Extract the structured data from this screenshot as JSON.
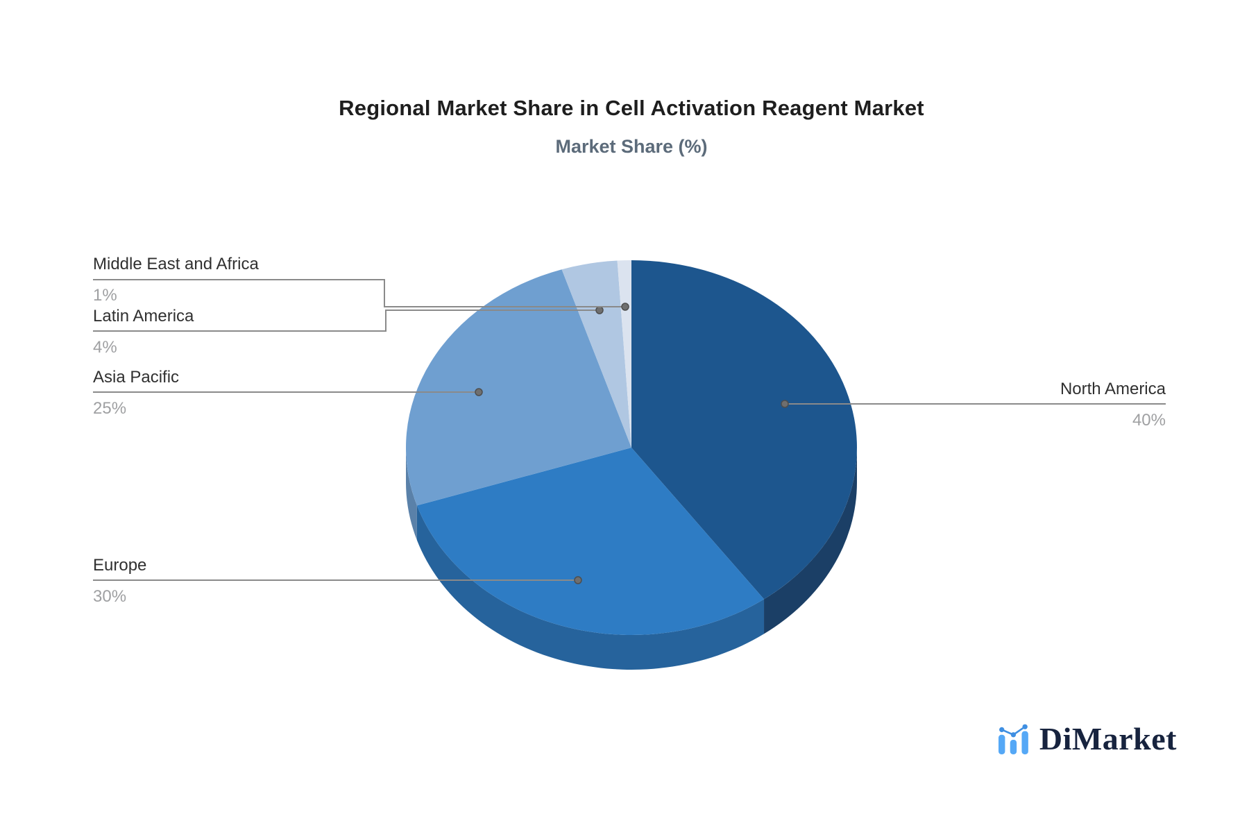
{
  "header": {
    "title": "Regional Market Share in Cell Activation Reagent Market",
    "subtitle": "Market Share (%)"
  },
  "chart_data": {
    "type": "pie",
    "style": "3d",
    "title": "Regional Market Share in Cell Activation Reagent Market",
    "subtitle": "Market Share (%)",
    "unit": "%",
    "direction": "clockwise",
    "start_angle_deg": 0,
    "legend_position": "callout-labels",
    "labels": [
      "North America",
      "Europe",
      "Asia Pacific",
      "Latin America",
      "Middle East and Africa"
    ],
    "values": [
      40,
      30,
      25,
      4,
      1
    ],
    "display_values": [
      "40%",
      "30%",
      "25%",
      "4%",
      "1%"
    ],
    "colors": [
      "#1D568E",
      "#2E7CC4",
      "#6F9FD0",
      "#B0C7E2",
      "#DBE3EF"
    ],
    "side_colors": [
      "#1B3F66",
      "#26639C",
      "#5A81A9",
      "#8FA3BD",
      "#B9C6D8"
    ],
    "callout_line_color": "#8A8A8A",
    "label_color": "#303030",
    "value_color": "#9FA0A2"
  },
  "branding": {
    "name": "DiMarket",
    "icon": "bar-line-chart-icon",
    "text_color": "#17233E",
    "bar_color": "#55A8F6",
    "line_color": "#3F8FE2"
  }
}
